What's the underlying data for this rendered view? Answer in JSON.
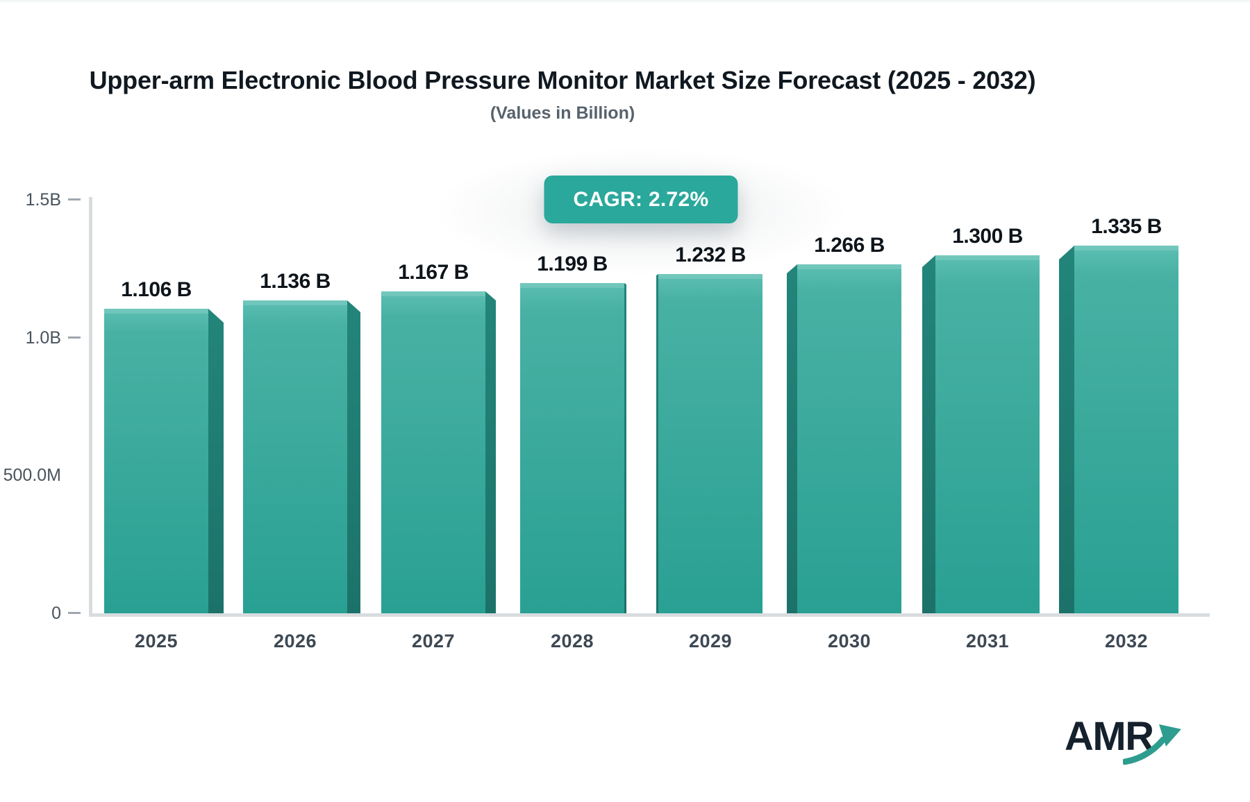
{
  "chart_data": {
    "type": "bar",
    "title": "Upper-arm Electronic Blood Pressure Monitor Market Size Forecast (2025 - 2032)",
    "subtitle": "(Values in Billion)",
    "categories": [
      "2025",
      "2026",
      "2027",
      "2028",
      "2029",
      "2030",
      "2031",
      "2032"
    ],
    "values": [
      1.106,
      1.136,
      1.167,
      1.199,
      1.232,
      1.266,
      1.3,
      1.335
    ],
    "value_labels": [
      "1.106 B",
      "1.136 B",
      "1.167 B",
      "1.199 B",
      "1.232 B",
      "1.266 B",
      "1.300 B",
      "1.335 B"
    ],
    "unit": "Billion",
    "annotations": [
      "CAGR: 2.72%"
    ],
    "xlabel": "",
    "ylabel": "",
    "ylim": [
      0,
      1.5
    ],
    "y_ticks": [
      {
        "label": "1.5B",
        "value": 1.5,
        "dash": true
      },
      {
        "label": "1.0B",
        "value": 1.0,
        "dash": true
      },
      {
        "label": "500.0M",
        "value": 0.5,
        "dash": false
      },
      {
        "label": "0",
        "value": 0.0,
        "dash": true
      }
    ],
    "grid": false,
    "legend": false
  },
  "logo": {
    "text": "AMR"
  },
  "colors": {
    "accent_teal": "#2AA89B",
    "badge_text": "#FFFFFF",
    "bar_face_top": "#5CBFB2",
    "bar_face_mid": "#48B1A4",
    "bar_face_bottom": "#29A093",
    "bar_side_top": "#23857A",
    "bar_side_bottom": "#1C7269",
    "axis_line": "#D8DCDF",
    "tick_dash": "#9FA8B1",
    "y_tick_text": "#49535D",
    "x_tick_text": "#3D4853",
    "value_text": "#0D141A",
    "title_text": "#101820",
    "subtitle_text": "#57626C",
    "logo_navy": "#15212C",
    "logo_arrow_teal": "#2E9D90"
  }
}
